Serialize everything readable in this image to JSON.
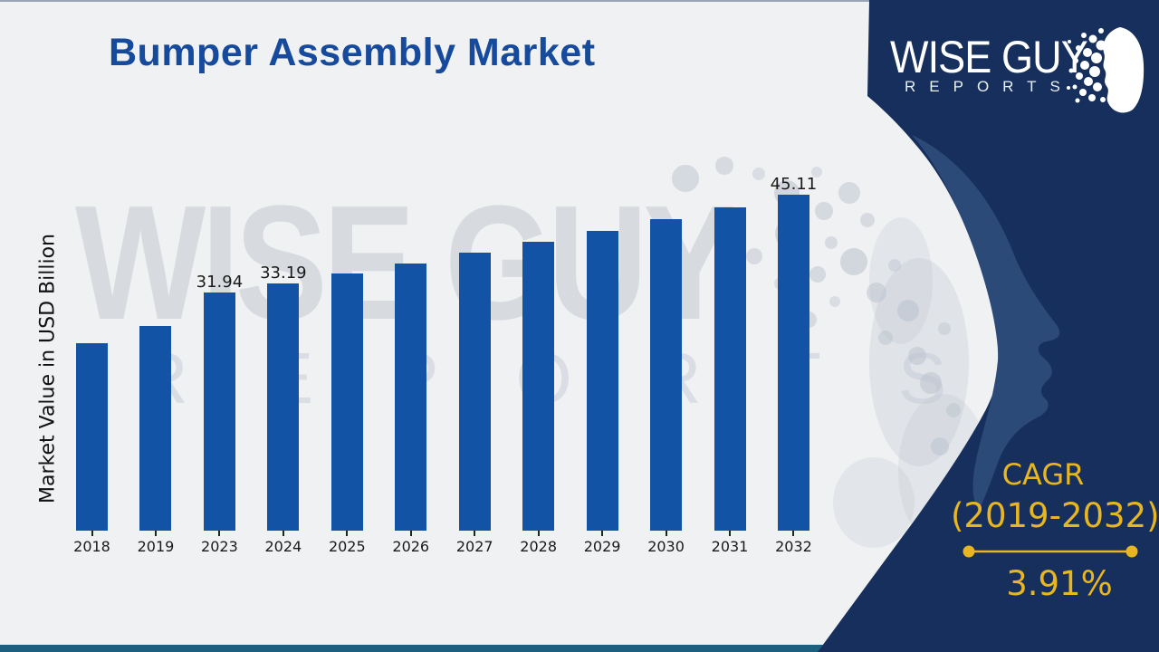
{
  "page_title": "Bumper Assembly Market",
  "chart_data": {
    "type": "bar",
    "title": "Bumper Assembly Market",
    "categories": [
      "2018",
      "2019",
      "2023",
      "2024",
      "2025",
      "2026",
      "2027",
      "2028",
      "2029",
      "2030",
      "2031",
      "2032"
    ],
    "values": [
      25.1,
      27.4,
      31.94,
      33.19,
      34.5,
      35.9,
      37.25,
      38.7,
      40.2,
      41.8,
      43.4,
      45.11
    ],
    "point_labels": [
      "",
      "",
      "31.94",
      "33.19",
      "",
      "",
      "",
      "",
      "",
      "",
      "",
      "45.11"
    ],
    "xlabel": "",
    "ylabel": "Market Value in USD Billion",
    "ylim": [
      0,
      47
    ],
    "grid": false,
    "legend": null,
    "bar_color": "#1253a6"
  },
  "logo": {
    "name": "WISE GUY",
    "sub": "REPORTS"
  },
  "watermark": {
    "name": "WISE GUY",
    "sub": "REPORTS"
  },
  "cagr": {
    "heading": "CAGR",
    "range": "(2019-2032)",
    "value": "3.91%"
  },
  "icons": {
    "logo_face": "face-profile-with-dots",
    "watermark_face": "face-profile-dots-pattern"
  },
  "colors": {
    "background": "#f0f1f2",
    "bar": "#1253a6",
    "navy_panel": "#172f5c",
    "navy_light": "#2c4a77",
    "gold": "#e8b620",
    "teal_bar": "#1d5f7e",
    "title_blue": "#164a9c"
  }
}
